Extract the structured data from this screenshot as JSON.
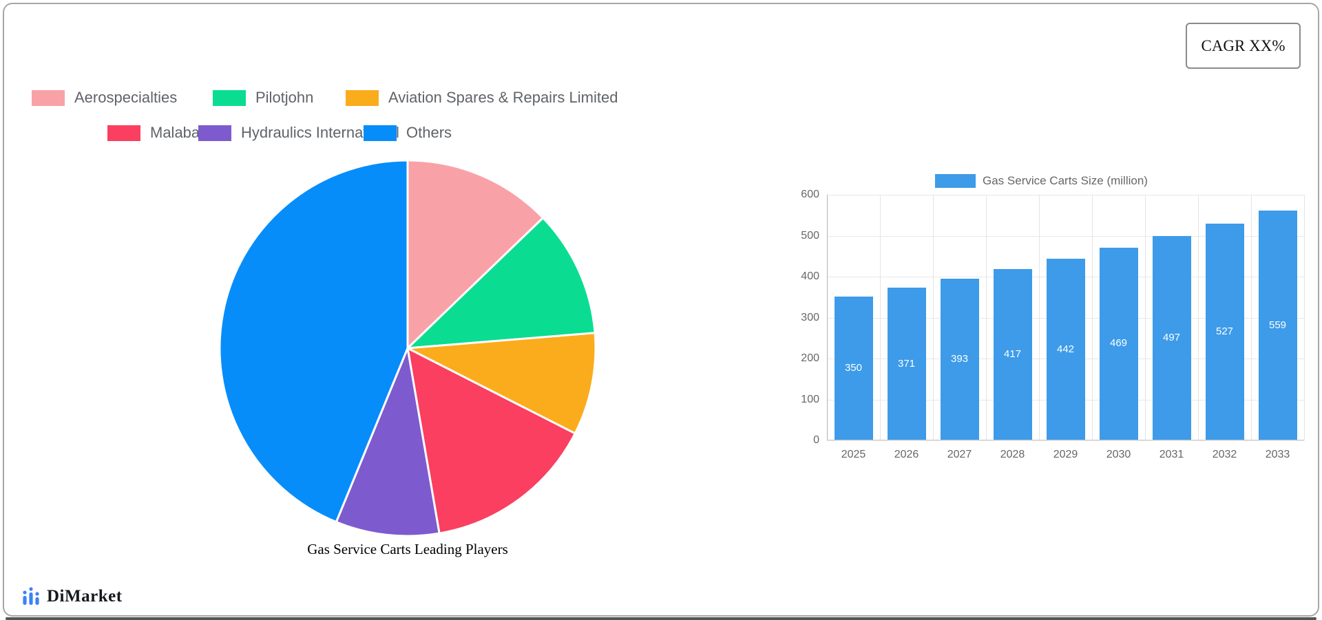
{
  "cagr_badge": "CAGR XX%",
  "brand": {
    "name": "DiMarket"
  },
  "chart_data": [
    {
      "type": "pie",
      "title": "Gas Service Carts Leading Players",
      "labels": [
        "Aerospecialties",
        "Pilotjohn",
        "Aviation Spares & Repairs Limited",
        "Malabar",
        "Hydraulics International",
        "Others"
      ],
      "values_percent": [
        12.8,
        10.9,
        8.8,
        14.8,
        8.9,
        43.8
      ],
      "colors": [
        "#F8A2A7",
        "#0ADD92",
        "#FBAC1C",
        "#FA3F60",
        "#7D5BCE",
        "#078DFA"
      ],
      "legend_position": "top",
      "legend_rows": [
        [
          0,
          1,
          2
        ],
        [
          3,
          4,
          5
        ]
      ],
      "start_at": "top",
      "direction": "clockwise",
      "slice_border_color": "#ffffff"
    },
    {
      "type": "bar",
      "legend": "Gas Service Carts Size (million)",
      "categories": [
        "2025",
        "2026",
        "2027",
        "2028",
        "2029",
        "2030",
        "2031",
        "2032",
        "2033"
      ],
      "values": [
        350,
        371,
        393,
        417,
        442,
        469,
        497,
        527,
        559
      ],
      "bar_color": "#3d9be9",
      "value_label_color": "#ffffff",
      "ylim": [
        0,
        600
      ],
      "yticks": [
        0,
        100,
        200,
        300,
        400,
        500,
        600
      ],
      "grid": true,
      "legend_position": "top"
    }
  ]
}
